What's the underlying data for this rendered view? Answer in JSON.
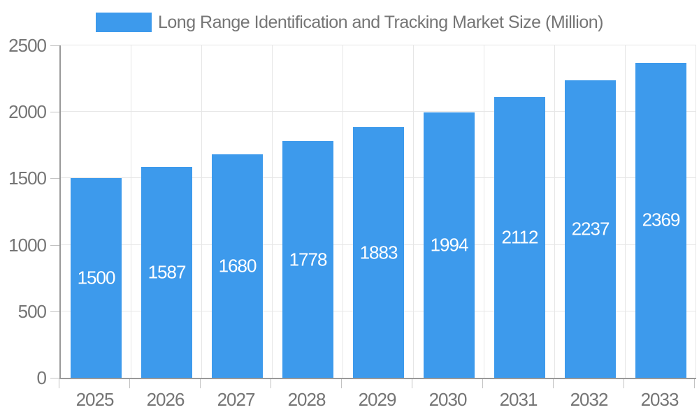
{
  "chart_data": {
    "type": "bar",
    "title": "Long Range Identification and Tracking Market Size (Million)",
    "categories": [
      "2025",
      "2026",
      "2027",
      "2028",
      "2029",
      "2030",
      "2031",
      "2032",
      "2033"
    ],
    "values": [
      1500,
      1587,
      1680,
      1778,
      1883,
      1994,
      2112,
      2237,
      2369
    ],
    "xlabel": "",
    "ylabel": "",
    "ylim": [
      0,
      2500
    ],
    "yticks": [
      0,
      500,
      1000,
      1500,
      2000,
      2500
    ],
    "grid": true,
    "legend_position": "top",
    "value_labels": "inside-middle",
    "colors": {
      "bar": "#3d9aec",
      "bar_label": "#ffffff",
      "axis": "#999999",
      "gridline": "#e6e6e6",
      "tick": "#c2c2c2",
      "text": "#757575"
    }
  }
}
